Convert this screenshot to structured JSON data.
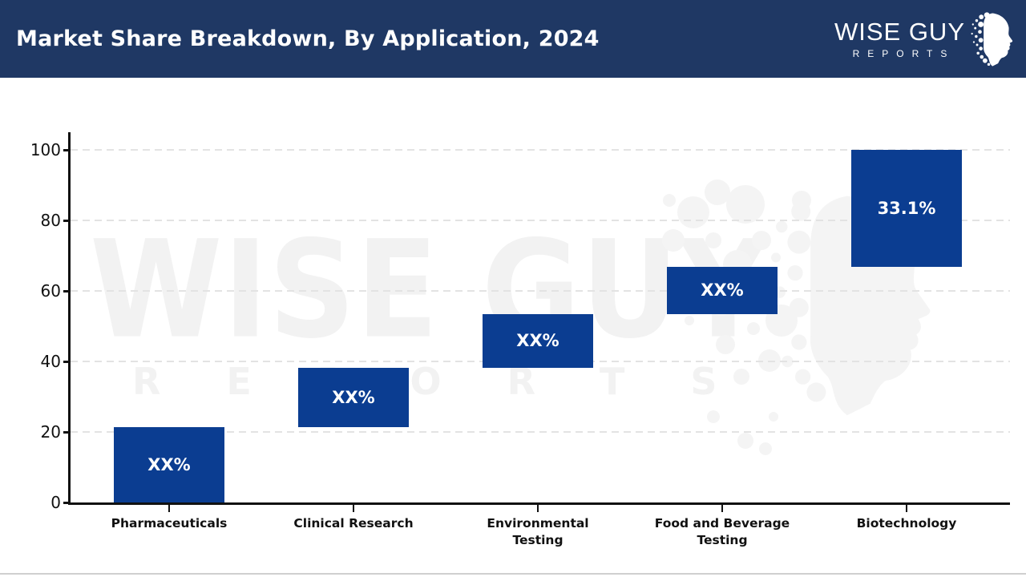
{
  "header": {
    "title": "Market Share Breakdown, By Application, 2024",
    "bg_color": "#1f3864",
    "logo": {
      "wordmark": "WISE GUY",
      "subtext": "REPORTS",
      "face_icon": "face-profile-dots-icon"
    }
  },
  "watermark": {
    "line1": "WISE GUY",
    "line2": "REPORTS"
  },
  "chart_data": {
    "type": "bar",
    "variant": "waterfall-floating-bars",
    "title": "Market Share Breakdown, By Application, 2024",
    "xlabel": "",
    "ylabel": "",
    "ylim": [
      0,
      100
    ],
    "yticks": [
      0,
      20,
      40,
      60,
      80,
      100
    ],
    "grid": "dashed-horizontal",
    "legend": "none",
    "bar_color": "#0b3d91",
    "bar_label_color": "#ffffff",
    "axis_color": "#111111",
    "grid_color": "#e3e3e3",
    "categories": [
      "Pharmaceuticals",
      "Clinical Research",
      "Environmental Testing",
      "Food and Beverage Testing",
      "Biotechnology"
    ],
    "bars": [
      {
        "category_lines": [
          "Pharmaceuticals"
        ],
        "start": 0,
        "end": 21.3,
        "label": "XX%"
      },
      {
        "category_lines": [
          "Clinical Research"
        ],
        "start": 21.3,
        "end": 38.2,
        "label": "XX%"
      },
      {
        "category_lines": [
          "Environmental",
          "Testing"
        ],
        "start": 38.2,
        "end": 53.5,
        "label": "XX%"
      },
      {
        "category_lines": [
          "Food and Beverage",
          "Testing"
        ],
        "start": 53.5,
        "end": 66.9,
        "label": "XX%"
      },
      {
        "category_lines": [
          "Biotechnology"
        ],
        "start": 66.9,
        "end": 100,
        "label": "33.1%"
      }
    ]
  }
}
